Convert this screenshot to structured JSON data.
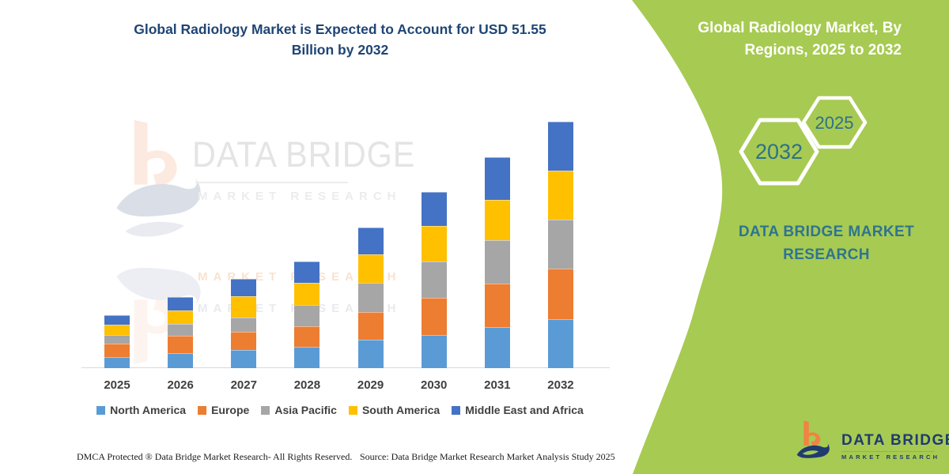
{
  "page_title": {
    "line1": "Global Radiology Market is Expected to Account for USD 51.55",
    "line2": "Billion by 2032"
  },
  "watermark": {
    "brand": "DATA BRIDGE",
    "sub": "MARKET RESEARCH",
    "sub_faint_orange": "MARKET RESEARCH",
    "sub_faint_gray": "MARKET RESEARCH"
  },
  "chart_data": {
    "type": "bar",
    "stacked": true,
    "title": "Global Radiology Market is Expected to Account for USD 51.55 Billion by 2032",
    "unit": "USD Billion (estimated from bar heights; only 2032 total labeled)",
    "categories": [
      "2025",
      "2026",
      "2027",
      "2028",
      "2029",
      "2030",
      "2031",
      "2032"
    ],
    "series": [
      {
        "name": "North America",
        "values": [
          2.27,
          3.19,
          3.75,
          4.42,
          5.95,
          7.01,
          8.55,
          10.32
        ]
      },
      {
        "name": "Europe",
        "values": [
          2.86,
          3.59,
          3.86,
          4.3,
          5.79,
          7.71,
          9.21,
          10.47
        ]
      },
      {
        "name": "Asia Pacific",
        "values": [
          1.82,
          2.48,
          3.03,
          4.52,
          6.07,
          7.56,
          9.1,
          10.2
        ]
      },
      {
        "name": "South America",
        "values": [
          2.15,
          2.76,
          4.42,
          4.58,
          6.07,
          7.49,
          8.43,
          10.3
        ]
      },
      {
        "name": "Middle East and Africa",
        "values": [
          1.98,
          2.86,
          3.59,
          4.42,
          5.51,
          7.01,
          8.93,
          10.25
        ]
      }
    ],
    "totals": [
      11.08,
      14.88,
      18.65,
      22.24,
      29.39,
      36.78,
      44.22,
      51.55
    ],
    "labeled_value_2032_total": 51.55,
    "colors": {
      "North America": "#5B9BD5",
      "Europe": "#ED7D31",
      "Asia Pacific": "#A6A6A6",
      "South America": "#FFC000",
      "Middle East and Africa": "#4472C4"
    },
    "legend_position": "bottom",
    "y_axis_visible": false,
    "gridlines": false
  },
  "side_panel": {
    "bg_color": "#a7ca52",
    "text_color": "#2e7490",
    "title_line1": "Global Radiology Market, By",
    "title_line2": "Regions, 2025 to 2032",
    "hexagon_back_label": "2025",
    "hexagon_front_label": "2032",
    "brand_line1": "DATA BRIDGE MARKET",
    "brand_line2": "RESEARCH"
  },
  "logo": {
    "name": "DATA BRIDGE",
    "sub": "MARKET RESEARCH"
  },
  "footer": {
    "left": "DMCA Protected ® Data Bridge Market Research-  All Rights Reserved.",
    "right": "Source: Data Bridge Market Research  Market Analysis Study 2025"
  }
}
